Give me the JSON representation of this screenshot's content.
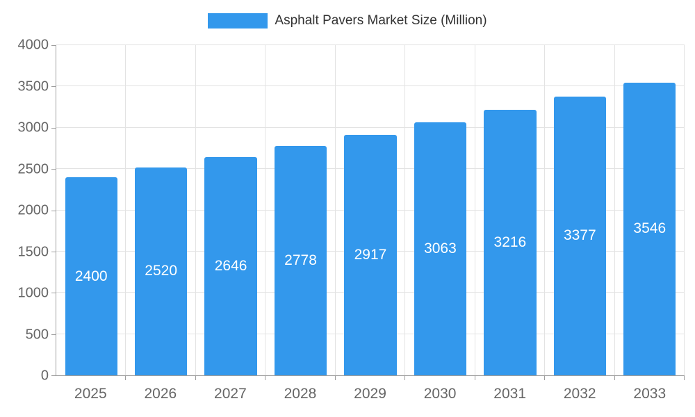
{
  "legend": {
    "label": "Asphalt Pavers Market Size (Million)"
  },
  "colors": {
    "bar": "#3398EC",
    "grid": "#E3E3E3",
    "axis": "#9E9E9E",
    "tick_text": "#666666",
    "legend_text": "#333333",
    "bar_label_text": "#FFFFFF",
    "background": "#FFFFFF"
  },
  "chart_data": {
    "type": "bar",
    "title": "Asphalt Pavers Market Size (Million)",
    "categories": [
      "2025",
      "2026",
      "2027",
      "2028",
      "2029",
      "2030",
      "2031",
      "2032",
      "2033"
    ],
    "values": [
      2400,
      2520,
      2646,
      2778,
      2917,
      3063,
      3216,
      3377,
      3546
    ],
    "series": [
      {
        "name": "Asphalt Pavers Market Size (Million)",
        "values": [
          2400,
          2520,
          2646,
          2778,
          2917,
          3063,
          3216,
          3377,
          3546
        ]
      }
    ],
    "xlabel": "",
    "ylabel": "",
    "ylim": [
      0,
      4000
    ],
    "yticks": [
      0,
      500,
      1000,
      1500,
      2000,
      2500,
      3000,
      3500,
      4000
    ],
    "grid": true,
    "legend_position": "top",
    "bar_value_labels": "inside-center"
  }
}
